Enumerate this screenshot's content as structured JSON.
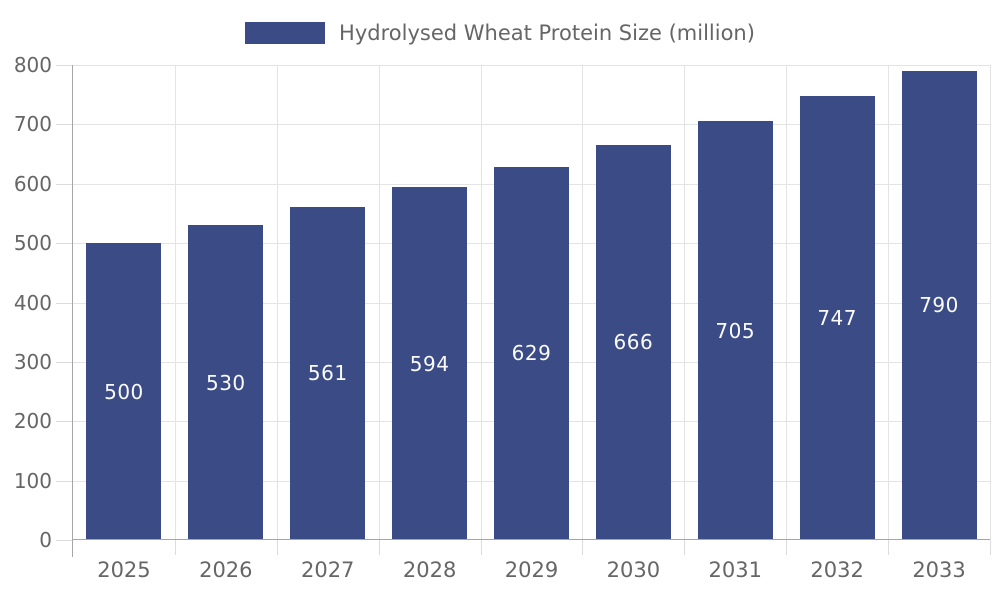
{
  "legend": {
    "label": "Hydrolysed Wheat Protein Size (million)"
  },
  "colors": {
    "bar": "#3a4b85",
    "bar_label": "#fafafa",
    "grid_line": "#e4e4e4",
    "axis_line": "#a6a6a6",
    "tick_line": "#dcdcdc",
    "axis_text": "#666666",
    "legend_text": "#666666",
    "background": "#ffffff"
  },
  "chart_data": {
    "type": "bar",
    "title": "Hydrolysed Wheat Protein Size (million)",
    "series_name": "Hydrolysed Wheat Protein Size (million)",
    "categories": [
      "2025",
      "2026",
      "2027",
      "2028",
      "2029",
      "2030",
      "2031",
      "2032",
      "2033"
    ],
    "values": [
      500,
      530,
      561,
      594,
      629,
      666,
      705,
      747,
      790
    ],
    "xlabel": "",
    "ylabel": "",
    "ylim": [
      0,
      800
    ],
    "y_ticks": [
      0,
      100,
      200,
      300,
      400,
      500,
      600,
      700,
      800
    ],
    "grid": true,
    "legend_position": "top",
    "value_label_position": "inside-center"
  }
}
